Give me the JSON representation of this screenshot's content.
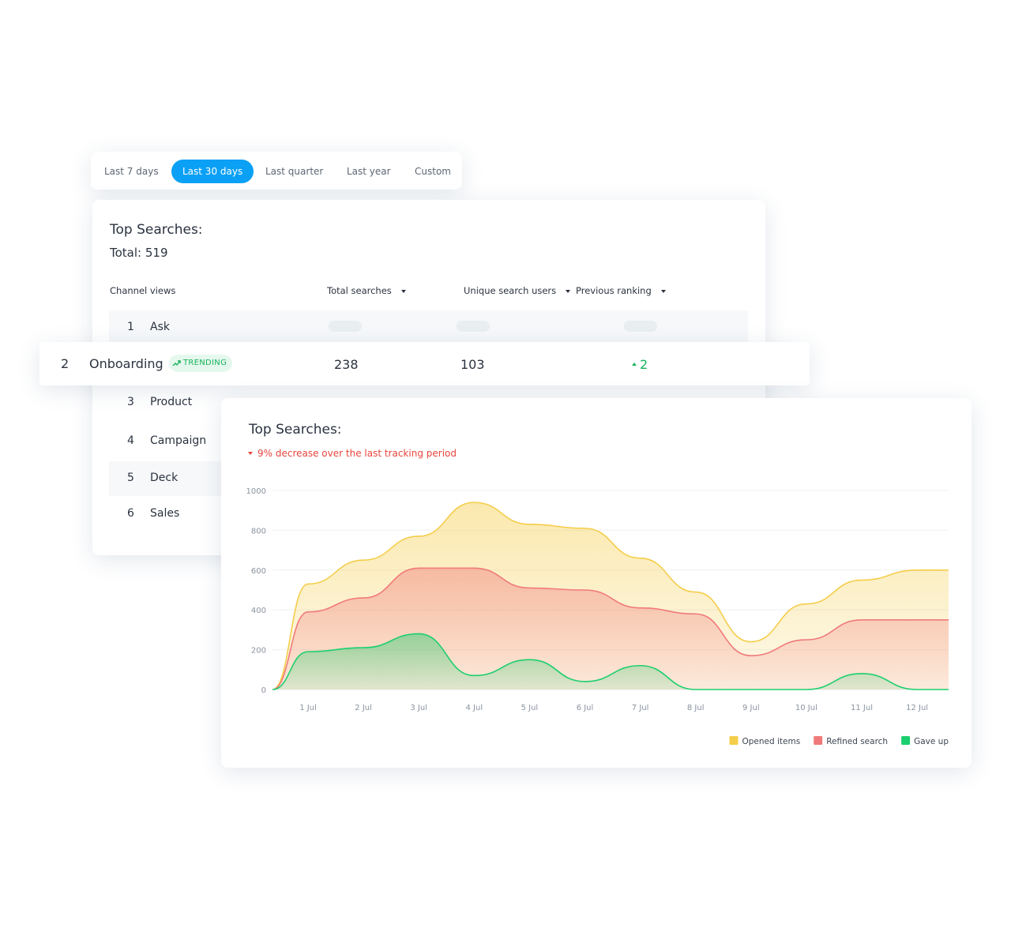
{
  "tabs": {
    "items": [
      "Last 7 days",
      "Last 30 days",
      "Last quarter",
      "Last year",
      "Custom"
    ],
    "active": 1
  },
  "table": {
    "title": "Top Searches:",
    "total": "Total: 519",
    "columns": [
      "Channel views",
      "Total searches",
      "Unique search users",
      "Previous ranking"
    ],
    "rows": [
      {
        "rank": 1,
        "name": "Ask"
      },
      {
        "rank": 2,
        "name": "Onboarding",
        "badge": "TRENDING",
        "total_searches": 238,
        "unique_users": 103,
        "previous_ranking": 2
      },
      {
        "rank": 3,
        "name": "Product"
      },
      {
        "rank": 4,
        "name": "Campaign"
      },
      {
        "rank": 5,
        "name": "Deck"
      },
      {
        "rank": 6,
        "name": "Sales"
      }
    ]
  },
  "chart_data": {
    "type": "area",
    "title": "Top Searches:",
    "subtitle": "9% decrease over the last tracking period",
    "categories": [
      null,
      "1 Jul",
      "2 Jul",
      "3 Jul",
      "4 Jul",
      "5 Jul",
      "6 Jul",
      "7 Jul",
      "8 Jul",
      "9 Jul",
      "10 Jul",
      "11 Jul",
      "12 Jul",
      null
    ],
    "series": [
      {
        "name": "Opened items",
        "color": "#f5cd4a",
        "values": [
          0,
          530,
          650,
          770,
          940,
          830,
          810,
          660,
          490,
          240,
          430,
          550,
          600,
          600
        ]
      },
      {
        "name": "Refined search",
        "color": "#f07a7a",
        "values": [
          0,
          390,
          460,
          610,
          610,
          510,
          500,
          410,
          380,
          170,
          250,
          350,
          350,
          350
        ]
      },
      {
        "name": "Gave up",
        "color": "#1ccf6e",
        "values": [
          0,
          190,
          210,
          280,
          70,
          150,
          40,
          120,
          0,
          0,
          0,
          80,
          0,
          0
        ]
      }
    ],
    "ylim": [
      0,
      1000
    ],
    "yticks": [
      0,
      200,
      400,
      600,
      800,
      1000
    ],
    "grid": true,
    "legend": "bottom-right"
  }
}
